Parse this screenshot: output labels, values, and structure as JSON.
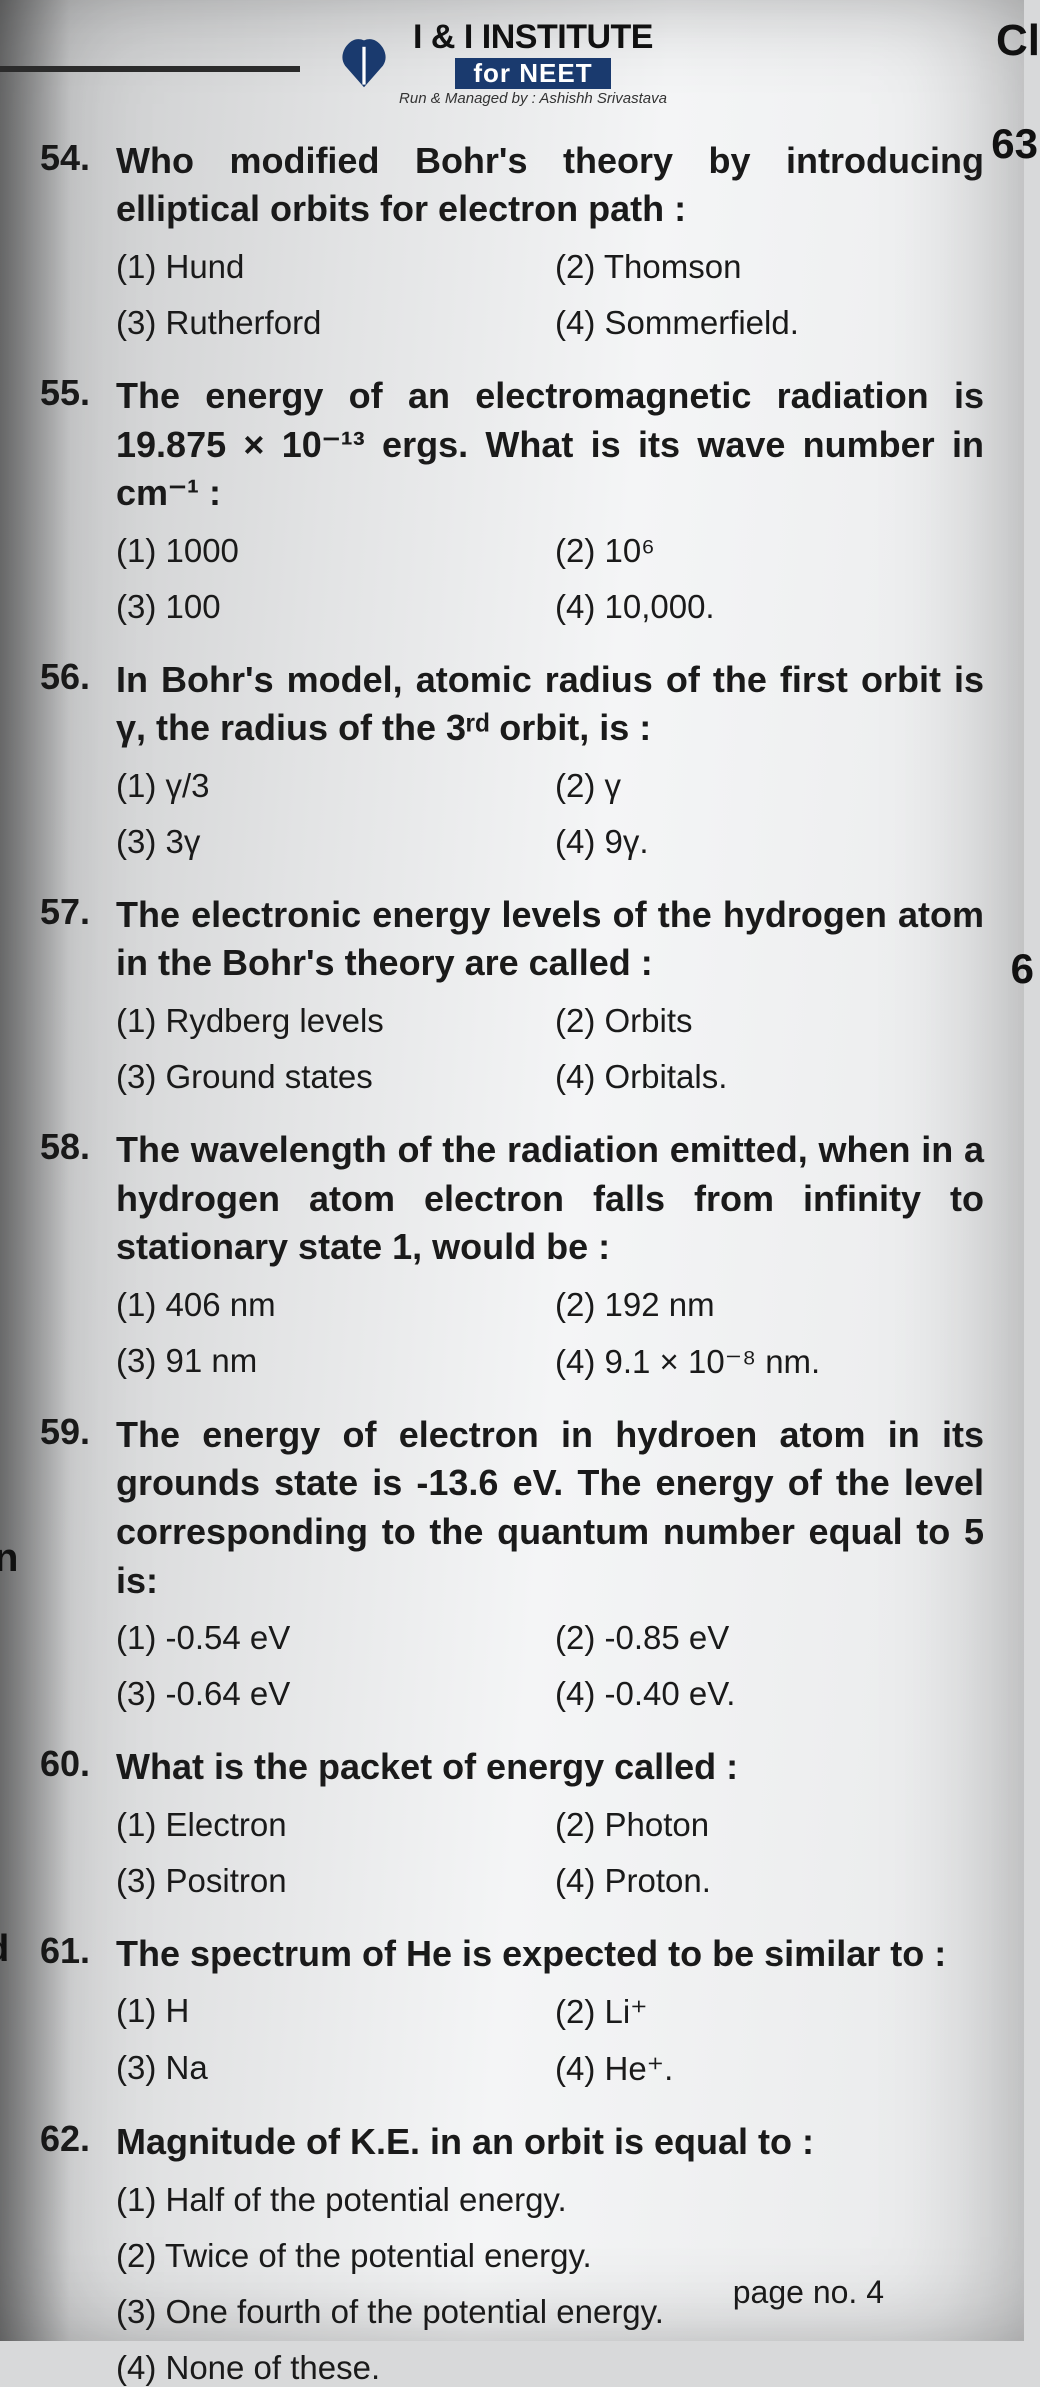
{
  "header": {
    "institute_line1": "I & I INSTITUTE",
    "institute_line2": "for NEET",
    "byline": "Run & Managed by : Ashishh Srivastava"
  },
  "edge": {
    "right1": "Cl",
    "right2": "63",
    "right3": "6",
    "left1": "n",
    "left2": "d"
  },
  "questions": [
    {
      "num": "54.",
      "text": "Who modified Bohr's theory by introducing elliptical orbits for electron path :",
      "opts": [
        "(1) Hund",
        "(2) Thomson",
        "(3) Rutherford",
        "(4) Sommerfield."
      ]
    },
    {
      "num": "55.",
      "text": "The energy of an electromagnetic radiation is 19.875 × 10⁻¹³ ergs. What is its wave number in cm⁻¹ :",
      "opts": [
        "(1) 1000",
        "(2) 10⁶",
        "(3) 100",
        "(4) 10,000."
      ]
    },
    {
      "num": "56.",
      "text": "In Bohr's model, atomic radius of the first orbit is γ, the radius of the 3ʳᵈ orbit, is :",
      "opts": [
        "(1) γ/3",
        "(2) γ",
        "(3) 3γ",
        "(4) 9γ."
      ]
    },
    {
      "num": "57.",
      "text": "The electronic energy levels of the hydrogen atom in the Bohr's theory are called :",
      "opts": [
        "(1) Rydberg levels",
        "(2) Orbits",
        "(3) Ground states",
        "(4) Orbitals."
      ]
    },
    {
      "num": "58.",
      "text": "The wavelength of the radiation emitted, when in a hydrogen atom electron falls from infinity to stationary state 1, would be :",
      "opts": [
        "(1) 406 nm",
        "(2) 192 nm",
        "(3) 91 nm",
        "(4) 9.1 × 10⁻⁸ nm."
      ]
    },
    {
      "num": "59.",
      "text": "The energy of electron in hydroen atom in its grounds state is -13.6 eV. The energy of the level corresponding to the quantum number equal to 5 is:",
      "opts": [
        "(1) -0.54 eV",
        "(2) -0.85 eV",
        "(3) -0.64 eV",
        "(4) -0.40 eV."
      ]
    },
    {
      "num": "60.",
      "text": "What is the packet of energy called :",
      "opts": [
        "(1) Electron",
        "(2) Photon",
        "(3) Positron",
        "(4) Proton."
      ]
    },
    {
      "num": "61.",
      "text": "The spectrum of He is expected to be similar to :",
      "opts": [
        "(1) H",
        "(2) Li⁺",
        "(3) Na",
        "(4) He⁺."
      ]
    },
    {
      "num": "62.",
      "text": "Magnitude of K.E. in an orbit is equal to :",
      "single": true,
      "opts": [
        "(1) Half of the potential energy.",
        "(2) Twice of the potential energy.",
        "(3) One fourth of the potential energy.",
        "(4) None of these."
      ]
    }
  ],
  "footer": {
    "page": "page no. 4"
  }
}
